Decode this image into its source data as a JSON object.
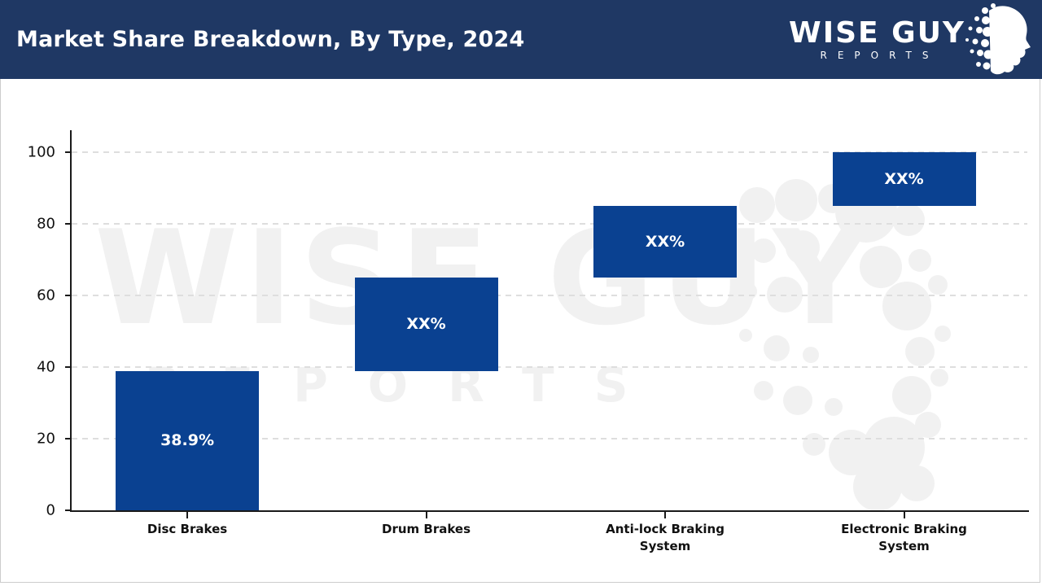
{
  "header": {
    "title": "Market Share Breakdown, By Type, 2024",
    "bg_color": "#1f3864",
    "logo": {
      "line1": "WISE GUY",
      "line2": "REPORTS"
    }
  },
  "watermark": {
    "line1": "WISE GUY",
    "line2": "REPORTS"
  },
  "chart_data": {
    "type": "bar",
    "subtype": "waterfall",
    "title": "Market Share Breakdown, By Type, 2024",
    "categories": [
      "Disc Brakes",
      "Drum Brakes",
      "Anti-lock Braking\nSystem",
      "Electronic Braking\nSystem"
    ],
    "segments": [
      {
        "category": "Disc Brakes",
        "start": 0,
        "end": 38.9,
        "label": "38.9%"
      },
      {
        "category": "Drum Brakes",
        "start": 38.9,
        "end": 65,
        "label": "XX%"
      },
      {
        "category": "Anti-lock Braking System",
        "start": 65,
        "end": 85,
        "label": "XX%"
      },
      {
        "category": "Electronic Braking System",
        "start": 85,
        "end": 100,
        "label": "XX%"
      }
    ],
    "yticks": [
      0,
      20,
      40,
      60,
      80,
      100
    ],
    "ylim": [
      0,
      100
    ],
    "grid": "dashed-horizontal",
    "legend": "none",
    "bar_color": "#0a4191",
    "layout": {
      "centers_pct": [
        12.1,
        37.1,
        62.1,
        87.1
      ],
      "bar_width_pct": 15
    }
  }
}
